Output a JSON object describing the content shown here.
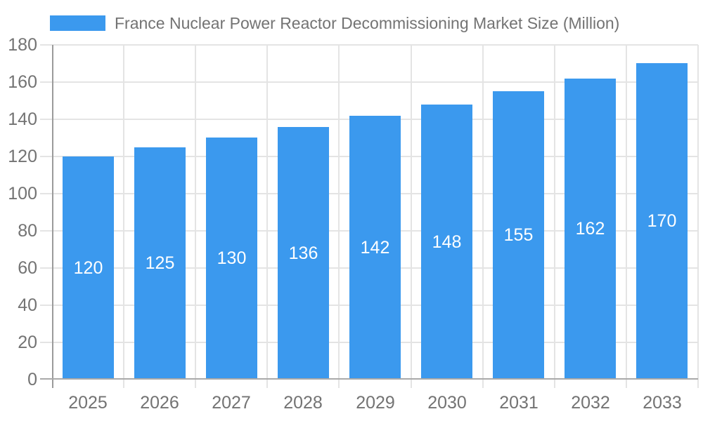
{
  "legend": {
    "label": "France Nuclear Power Reactor Decommissioning Market Size (Million)"
  },
  "chart_data": {
    "type": "bar",
    "title": "France Nuclear Power Reactor Decommissioning Market Size (Million)",
    "categories": [
      "2025",
      "2026",
      "2027",
      "2028",
      "2029",
      "2030",
      "2031",
      "2032",
      "2033"
    ],
    "values": [
      120,
      125,
      130,
      136,
      142,
      148,
      155,
      162,
      170
    ],
    "bar_value_labels": [
      "120",
      "125",
      "130",
      "136",
      "142",
      "148",
      "155",
      "162",
      "170"
    ],
    "xlabel": "",
    "ylabel": "",
    "ylim": [
      0,
      180
    ],
    "ytick_step": 20,
    "yticks": [
      0,
      20,
      40,
      60,
      80,
      100,
      120,
      140,
      160,
      180
    ],
    "grid": true,
    "legend_position": "top-left",
    "bar_label_position": "inside-center",
    "colors": {
      "bar": "#3b99ee",
      "grid": "#e4e4e4",
      "y_axis": "#9b9b9b",
      "x_axis": "#a9a9a9",
      "tick_text": "#737373",
      "legend_text": "#737373",
      "bar_value_text": "#ffffff",
      "background": "#ffffff"
    }
  }
}
